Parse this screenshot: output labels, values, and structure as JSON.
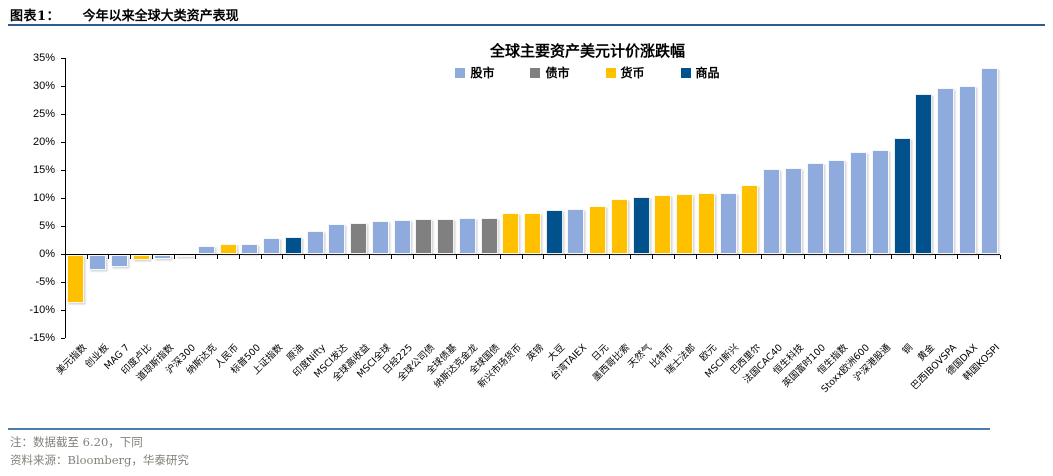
{
  "header": {
    "figure_label": "图表1：",
    "figure_title": "今年以来全球大类资产表现"
  },
  "chart_data": {
    "type": "bar",
    "title": "全球主要资产美元计价涨跌幅",
    "xlabel": "",
    "ylabel": "",
    "ylim": [
      -15,
      35
    ],
    "ytick_step": 5,
    "ytick_suffix": "%",
    "grid": false,
    "legend_position": "top",
    "legend": [
      {
        "key": "stock",
        "label": "股市",
        "color": "#8FAADC"
      },
      {
        "key": "bond",
        "label": "债市",
        "color": "#808080"
      },
      {
        "key": "currency",
        "label": "货币",
        "color": "#FFC000"
      },
      {
        "key": "commodity",
        "label": "商品",
        "color": "#00518C"
      }
    ],
    "categories": [
      "美元指数",
      "创业板",
      "MAG 7",
      "印度卢比",
      "道琼斯指数",
      "沪深300",
      "纳斯达克",
      "人民币",
      "标普500",
      "上证指数",
      "原油",
      "印度Nifty",
      "MSCI发达",
      "全球高收益",
      "MSCI全球",
      "日经225",
      "全球公司债",
      "全球债基",
      "纳斯达克金龙",
      "全球国债",
      "新兴市场货币",
      "英镑",
      "大豆",
      "台湾TAIEX",
      "日元",
      "墨西哥比索",
      "天然气",
      "比特币",
      "瑞士法郎",
      "欧元",
      "MSCI新兴",
      "巴西里尔",
      "法国CAC40",
      "恒生科技",
      "英国富时100",
      "恒生指数",
      "Stoxx欧洲600",
      "沪深港股通",
      "铜",
      "黄金",
      "巴西IBOVSPA",
      "德国DAX",
      "韩国KOSPI"
    ],
    "types": [
      "currency",
      "stock",
      "stock",
      "currency",
      "stock",
      "stock",
      "stock",
      "currency",
      "stock",
      "stock",
      "commodity",
      "stock",
      "stock",
      "bond",
      "stock",
      "stock",
      "bond",
      "bond",
      "stock",
      "bond",
      "currency",
      "currency",
      "commodity",
      "stock",
      "currency",
      "currency",
      "commodity",
      "currency",
      "currency",
      "currency",
      "stock",
      "currency",
      "stock",
      "stock",
      "stock",
      "stock",
      "stock",
      "stock",
      "commodity",
      "commodity",
      "stock",
      "stock",
      "stock"
    ],
    "values": [
      -8.6,
      -2.6,
      -2.1,
      -0.9,
      -0.8,
      -0.1,
      1.4,
      1.7,
      1.8,
      2.9,
      3.0,
      4.1,
      5.4,
      5.6,
      5.9,
      6.1,
      6.3,
      6.3,
      6.4,
      6.5,
      7.3,
      7.4,
      7.8,
      8.0,
      8.6,
      9.8,
      10.1,
      10.5,
      10.7,
      10.9,
      10.9,
      12.3,
      15.1,
      15.4,
      16.2,
      16.8,
      18.3,
      18.5,
      20.8,
      28.6,
      29.7,
      30.0,
      33.2
    ]
  },
  "footnotes": {
    "note": "注：数据截至 6.20，下同",
    "source": "资料来源：Bloomberg，华泰研究"
  }
}
